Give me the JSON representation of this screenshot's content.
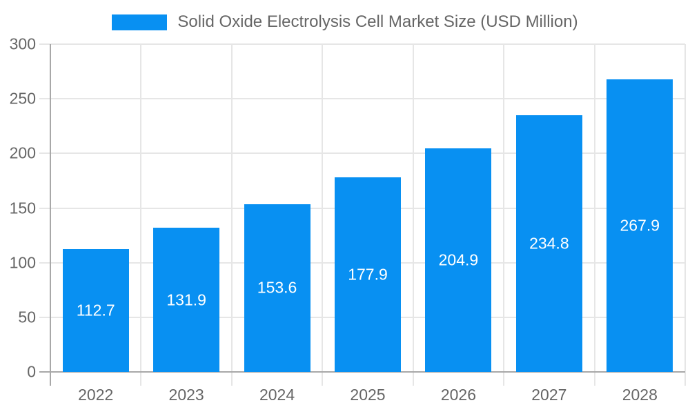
{
  "legend": {
    "label": "Solid Oxide Electrolysis Cell Market Size (USD Million)"
  },
  "colors": {
    "bar": "#0890f2",
    "axis": "#a8a8a8",
    "grid": "#e6e6e6",
    "tick_text": "#666666",
    "value_label": "#ffffff",
    "background": "#ffffff"
  },
  "chart_data": {
    "type": "bar",
    "title": "Solid Oxide Electrolysis Cell Market Size (USD Million)",
    "categories": [
      "2022",
      "2023",
      "2024",
      "2025",
      "2026",
      "2027",
      "2028"
    ],
    "values": [
      112.7,
      131.9,
      153.6,
      177.9,
      204.9,
      234.8,
      267.9
    ],
    "value_labels": [
      "112.7",
      "131.9",
      "153.6",
      "177.9",
      "204.9",
      "234.8",
      "267.9"
    ],
    "xlabel": "",
    "ylabel": "",
    "ylim": [
      0,
      300
    ],
    "yticks": [
      0,
      50,
      100,
      150,
      200,
      250,
      300
    ],
    "ytick_labels": [
      "0",
      "50",
      "100",
      "150",
      "200",
      "250",
      "300"
    ],
    "grid": true,
    "legend_position": "top",
    "value_label_position": "inside-center"
  }
}
